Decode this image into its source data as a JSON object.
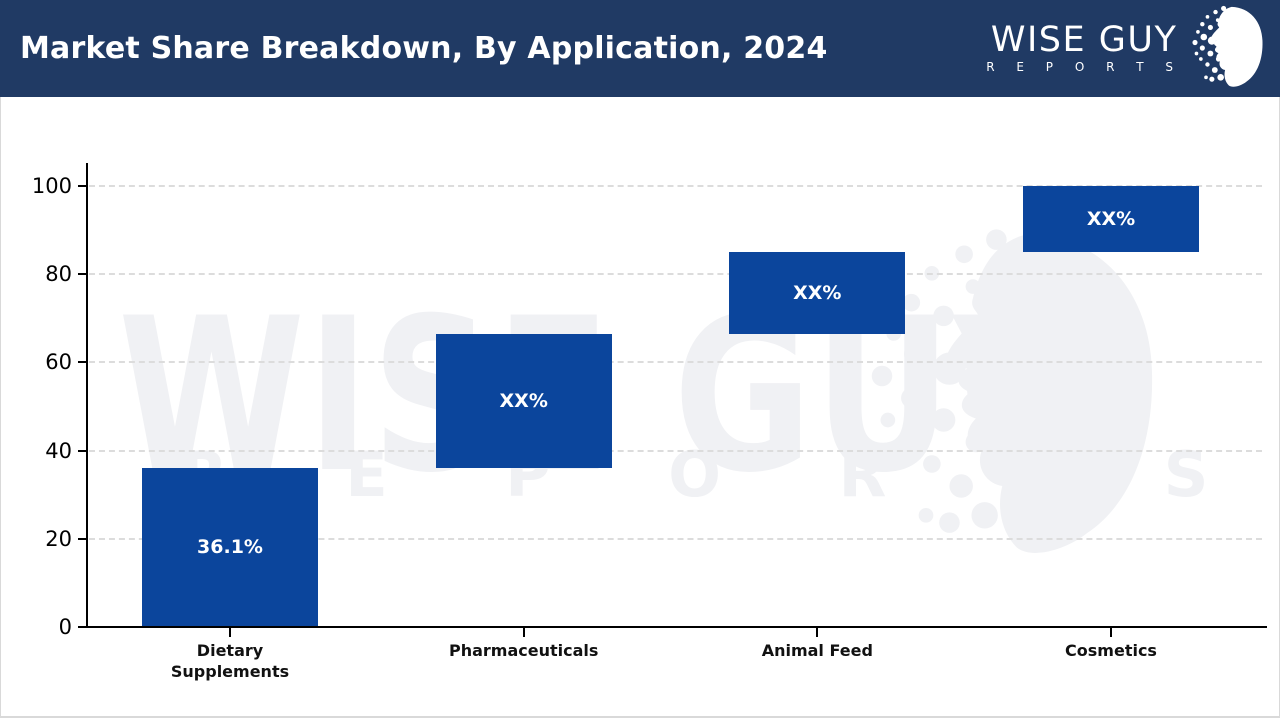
{
  "header": {
    "title": "Market Share Breakdown, By Application, 2024",
    "logo": {
      "line1": "WISE GUY",
      "line2": "R E P O R T S"
    }
  },
  "watermark": {
    "line1": "WISE GUY",
    "line2": "R E P O R T S"
  },
  "chart_data": {
    "type": "bar",
    "subtype": "stacked-waterfall",
    "title": "Market Share Breakdown, By Application, 2024",
    "categories": [
      "Dietary\nSupplements",
      "Pharmaceuticals",
      "Animal Feed",
      "Cosmetics"
    ],
    "segments": [
      {
        "category": "Dietary Supplements",
        "start": 0,
        "end": 36.1,
        "value": 36.1,
        "label": "36.1%"
      },
      {
        "category": "Pharmaceuticals",
        "start": 36.1,
        "end": 66.5,
        "value": 30.4,
        "label": "XX%"
      },
      {
        "category": "Animal Feed",
        "start": 66.5,
        "end": 85.0,
        "value": 18.5,
        "label": "XX%"
      },
      {
        "category": "Cosmetics",
        "start": 85.0,
        "end": 100.0,
        "value": 15.0,
        "label": "XX%"
      }
    ],
    "yticks": [
      0,
      20,
      40,
      60,
      80,
      100
    ],
    "ylim": [
      0,
      105
    ],
    "xlabel": "",
    "ylabel": "",
    "grid": "horizontal dashed",
    "legend": "none",
    "colors": {
      "bar": "#0b459c",
      "bar_label": "#ffffff",
      "header_bg": "#203a64",
      "axis": "#000000",
      "gridline": "#dcdcdc",
      "watermark": "#f0f1f4"
    }
  }
}
